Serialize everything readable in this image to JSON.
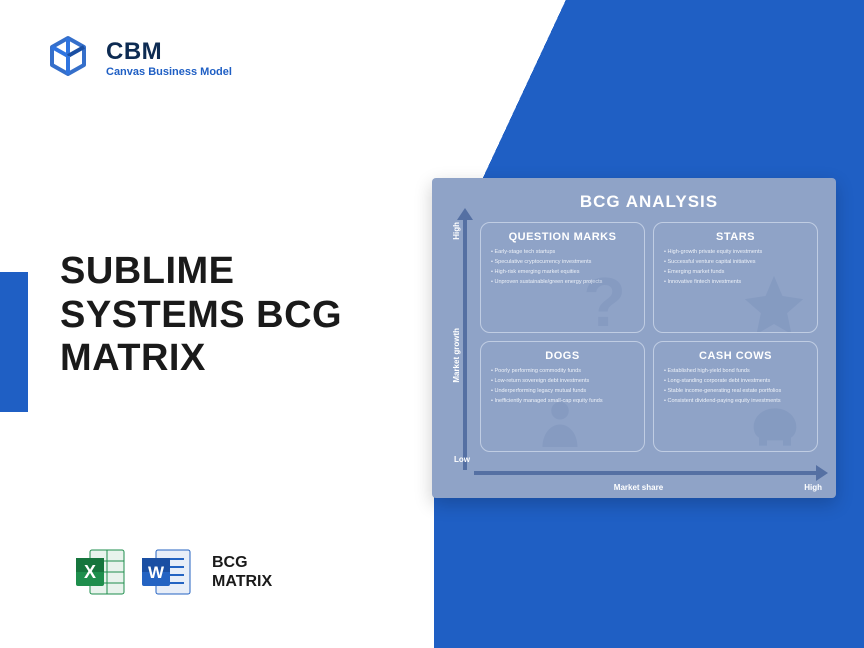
{
  "logo": {
    "title": "CBM",
    "subtitle": "Canvas Business Model"
  },
  "heading": "SUBLIME SYSTEMS BCG MATRIX",
  "format": {
    "line1": "BCG",
    "line2": "MATRIX"
  },
  "colors": {
    "primary_blue": "#1f5fc4",
    "panel_bg": "#8fa3c7",
    "axis": "#5570a3",
    "quad_border": "#c0cde3",
    "excel_green": "#1e8e4c",
    "word_blue": "#2463c2"
  },
  "bcg": {
    "title": "BCG ANALYSIS",
    "y_axis": {
      "label": "Market growth",
      "high": "High",
      "low": "Low"
    },
    "x_axis": {
      "label": "Market share",
      "high": "High"
    },
    "quadrants": {
      "question_marks": {
        "title": "QUESTION MARKS",
        "items": [
          "Early-stage tech startups",
          "Speculative cryptocurrency investments",
          "High-risk emerging market equities",
          "Unproven sustainable/green energy projects"
        ]
      },
      "stars": {
        "title": "STARS",
        "items": [
          "High-growth private equity investments",
          "Successful venture capital initiatives",
          "Emerging market funds",
          "Innovative fintech investments"
        ]
      },
      "dogs": {
        "title": "DOGS",
        "items": [
          "Poorly performing commodity funds",
          "Low-return sovereign debt investments",
          "Underperforming legacy mutual funds",
          "Inefficiently managed small-cap equity funds"
        ]
      },
      "cash_cows": {
        "title": "CASH COWS",
        "items": [
          "Established high-yield bond funds",
          "Long-standing corporate debt investments",
          "Stable income-generating real estate portfolios",
          "Consistent dividend-paying equity investments"
        ]
      }
    }
  }
}
